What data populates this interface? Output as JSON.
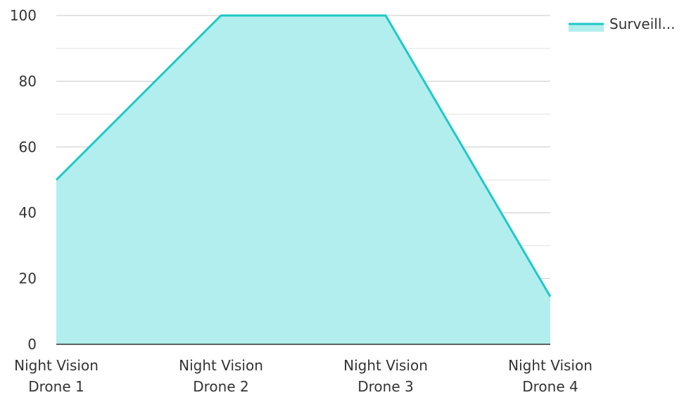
{
  "chart_data": {
    "type": "area",
    "categories": [
      "Night Vision Drone 1",
      "Night Vision Drone 2",
      "Night Vision Drone 3",
      "Night Vision Drone 4"
    ],
    "category_lines": [
      [
        "Night Vision",
        "Drone 1"
      ],
      [
        "Night Vision",
        "Drone 2"
      ],
      [
        "Night Vision",
        "Drone 3"
      ],
      [
        "Night Vision",
        "Drone 4"
      ]
    ],
    "series": [
      {
        "name": "Surveill...",
        "values": [
          50,
          100,
          100,
          14.5
        ],
        "line_color": "#1ec8c8",
        "fill_color": "#b2eeee"
      }
    ],
    "ylim": [
      0,
      100
    ],
    "yticks": [
      "0",
      "20",
      "40",
      "60",
      "80",
      "100"
    ],
    "ytick_values": [
      0,
      20,
      40,
      60,
      80,
      100
    ],
    "minor_step": 10,
    "grid": true,
    "legend_position": "top-right",
    "title": "",
    "xlabel": "",
    "ylabel": ""
  }
}
